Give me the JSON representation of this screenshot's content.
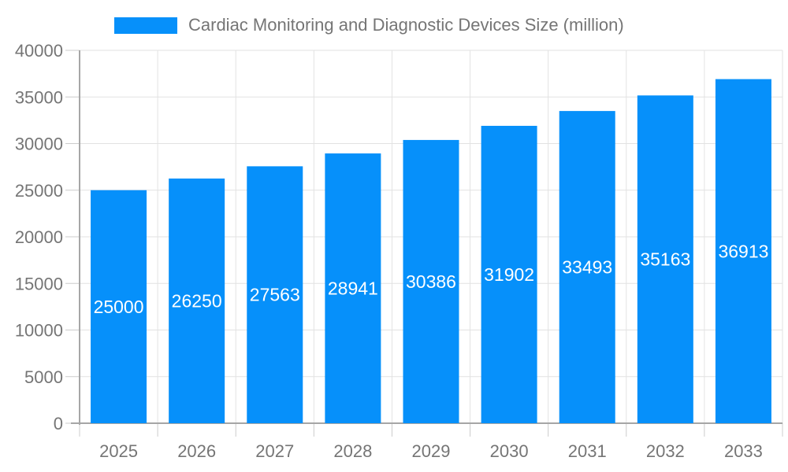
{
  "legend": {
    "label": "Cardiac Monitoring and Diagnostic Devices Size (million)"
  },
  "chart_data": {
    "type": "bar",
    "title": "Cardiac Monitoring and Diagnostic Devices Size (million)",
    "categories": [
      "2025",
      "2026",
      "2027",
      "2028",
      "2029",
      "2030",
      "2031",
      "2032",
      "2033"
    ],
    "values": [
      25000,
      26250,
      27563,
      28941,
      30386,
      31902,
      33493,
      35163,
      36913
    ],
    "bar_labels": [
      "25000",
      "26250",
      "27563",
      "28941",
      "30386",
      "31902",
      "33493",
      "35163",
      "36913"
    ],
    "xlabel": "",
    "ylabel": "",
    "yticks": [
      0,
      5000,
      10000,
      15000,
      20000,
      25000,
      30000,
      35000,
      40000
    ],
    "ylim": [
      0,
      40000
    ],
    "grid": true,
    "legend_position": "top",
    "value_label_position": "inside-center",
    "colors": {
      "bar": "#0690fa",
      "grid": "#e2e2e2",
      "axis": "#a6a6a6",
      "tick": "#cccccc",
      "axis_text": "#757575",
      "bar_label": "#ffffff",
      "background": "#ffffff"
    }
  }
}
